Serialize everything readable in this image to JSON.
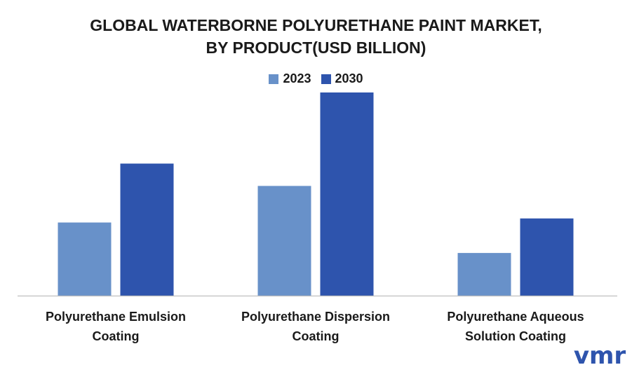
{
  "chart_data": {
    "type": "bar",
    "title_lines": [
      "GLOBAL WATERBORNE POLYURETHANE PAINT MARKET,",
      "BY PRODUCT(USD BILLION)"
    ],
    "categories": [
      [
        "Polyurethane Emulsion",
        "Coating"
      ],
      [
        "Polyurethane Dispersion",
        "Coating"
      ],
      [
        "Polyurethane Aqueous",
        "Solution Coating"
      ]
    ],
    "series": [
      {
        "name": "2023",
        "color": "#6891c9",
        "values": [
          3.6,
          5.4,
          2.1
        ]
      },
      {
        "name": "2030",
        "color": "#2e54ad",
        "values": [
          6.5,
          10.0,
          3.8
        ]
      }
    ],
    "ylim": [
      0,
      10
    ],
    "grid": false,
    "legend_position": "top-center"
  },
  "brand": {
    "logo_text": "vmr",
    "logo_color": "#2e54ad"
  }
}
